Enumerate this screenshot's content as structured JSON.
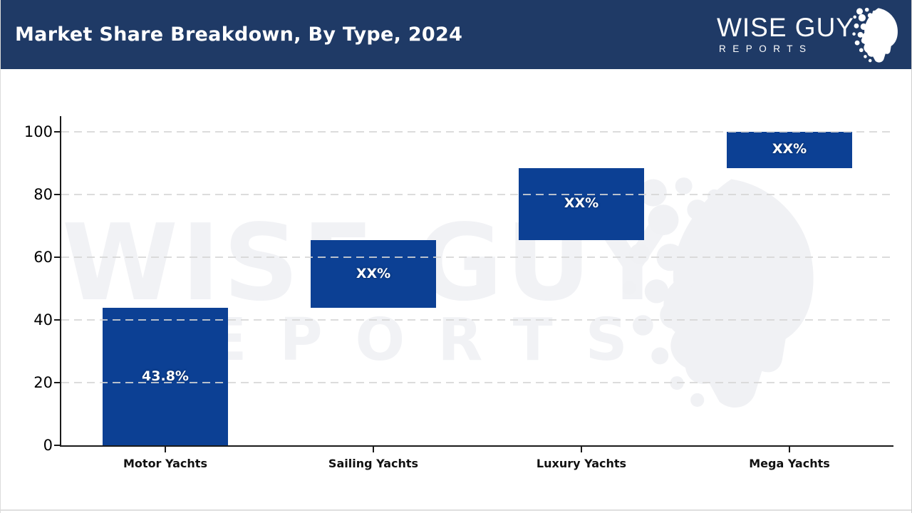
{
  "header": {
    "title": "Market Share Breakdown, By Type, 2024",
    "logo_line1": "WISE GUY",
    "logo_line2": "REPORTS"
  },
  "watermark": {
    "line1": "WISE GUY",
    "line2": "REPORTS"
  },
  "colors": {
    "header_bg": "#1f3a66",
    "bar": "#0c4094",
    "grid": "#d6d6d6",
    "axis": "#1a1a1a",
    "bar_label": "#ffffff",
    "watermark": "#f1f2f5"
  },
  "chart_data": {
    "type": "bar",
    "subtype": "waterfall",
    "title": "Market Share Breakdown, By Type, 2024",
    "categories": [
      "Motor Yachts",
      "Sailing Yachts",
      "Luxury Yachts",
      "Mega Yachts"
    ],
    "segments": [
      {
        "category": "Motor Yachts",
        "start": 0,
        "end": 43.8,
        "label": "43.8%"
      },
      {
        "category": "Sailing Yachts",
        "start": 43.8,
        "end": 65.5,
        "label": "XX%"
      },
      {
        "category": "Luxury Yachts",
        "start": 65.5,
        "end": 88.5,
        "label": "XX%"
      },
      {
        "category": "Mega Yachts",
        "start": 88.5,
        "end": 100,
        "label": "XX%"
      }
    ],
    "yticks": [
      0,
      20,
      40,
      60,
      80,
      100
    ],
    "ylim": [
      0,
      105
    ],
    "xlabel": "",
    "ylabel": "",
    "grid": "horizontal-dashed",
    "legend": "none"
  }
}
